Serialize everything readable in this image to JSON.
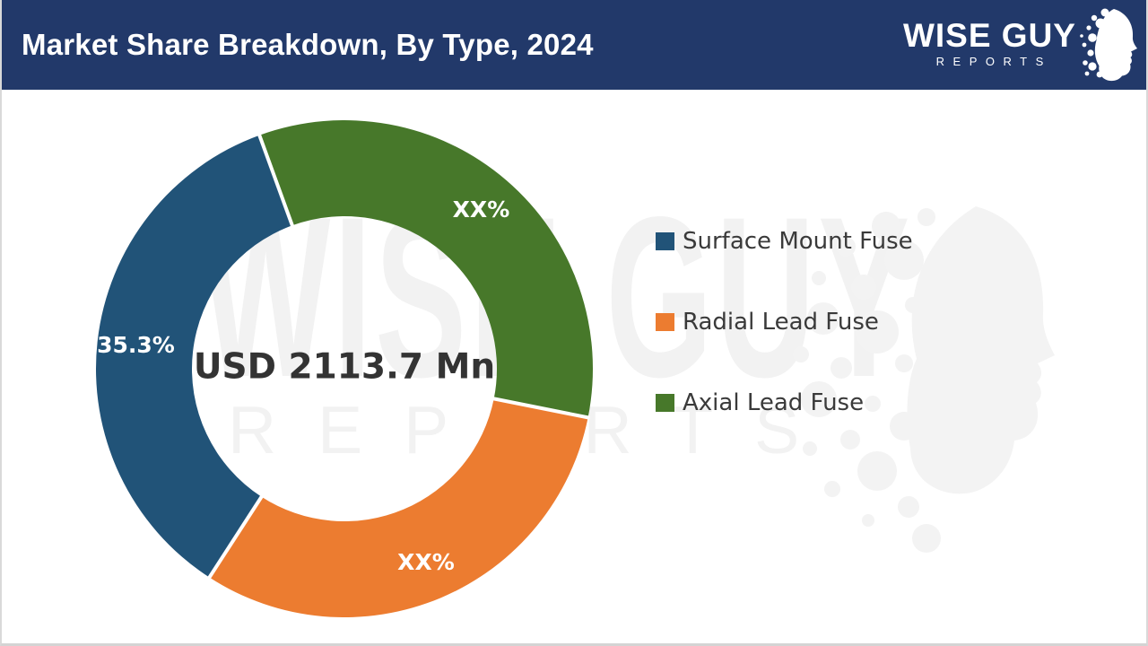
{
  "header": {
    "title": "Market Share Breakdown, By Type, 2024",
    "bg_color": "#22396A",
    "logo": {
      "wordmark": "WISE GUY",
      "subtext": "REPORTS"
    }
  },
  "watermark": {
    "wordmark": "WISE GUY",
    "subtext": "REPORTS"
  },
  "chart_data": {
    "type": "pie",
    "subtype": "donut",
    "title": "Market Share Breakdown, By Type, 2024",
    "center_label": "USD 2113.7 Mn",
    "start_angle_deg": 110,
    "direction": "counterclockwise",
    "legend_position": "right",
    "segments": [
      {
        "label": "Surface Mount Fuse",
        "display_value": "35.3%",
        "value": 35.3,
        "color": "#215378"
      },
      {
        "label": "Radial Lead Fuse",
        "display_value": "XX%",
        "value": 31.0,
        "color": "#EC7C30"
      },
      {
        "label": "Axial Lead Fuse",
        "display_value": "XX%",
        "value": 33.7,
        "color": "#47782A"
      }
    ],
    "style": {
      "center_text_color": "#333333",
      "percent_label_color": "#ffffff",
      "separator_color": "#ffffff"
    }
  }
}
